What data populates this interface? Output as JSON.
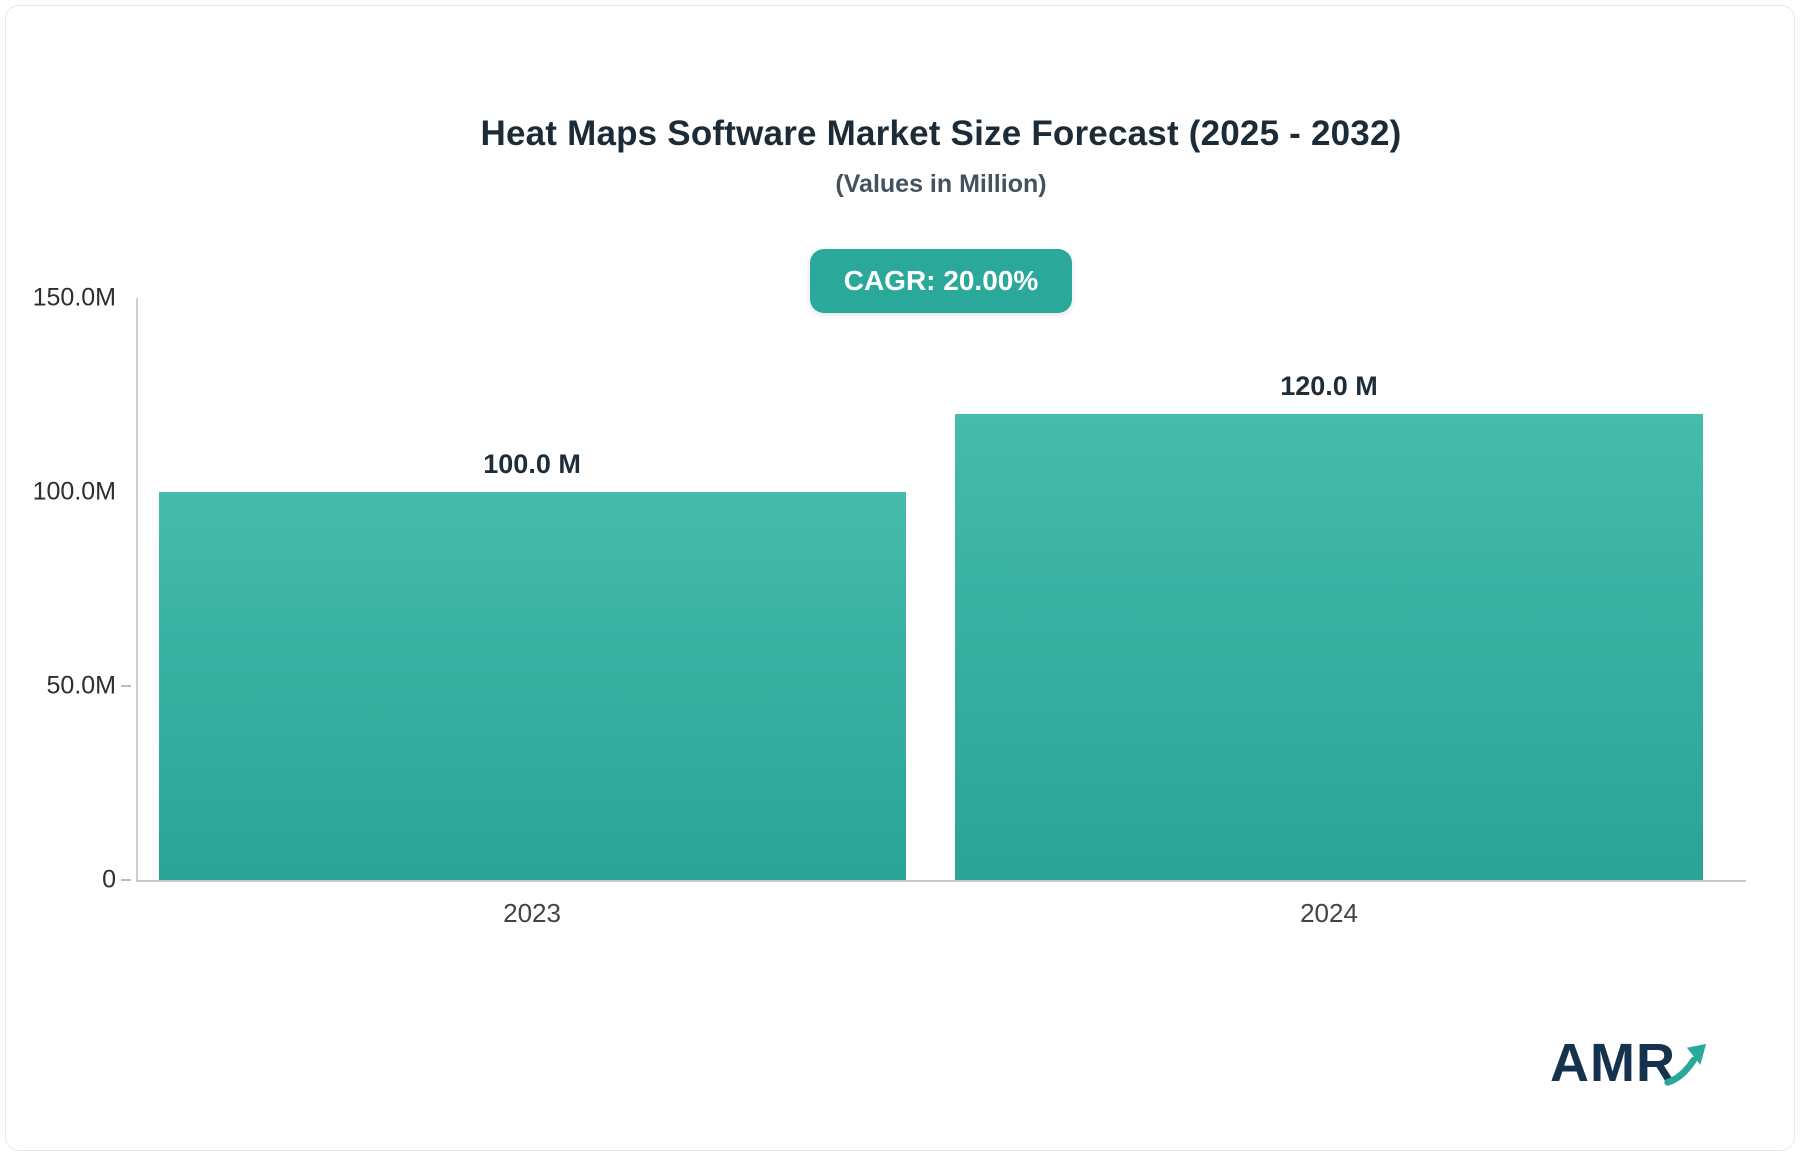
{
  "header": {
    "title": "Heat Maps Software Market Size Forecast (2025 - 2032)",
    "subtitle": "(Values in Million)",
    "cagr_badge": "CAGR: 20.00%"
  },
  "chart_data": {
    "type": "bar",
    "title": "Heat Maps Software Market Size Forecast (2025 - 2032)",
    "subtitle": "(Values in Million)",
    "cagr_percent": 20.0,
    "categories": [
      "2023",
      "2024"
    ],
    "values": [
      100.0,
      120.0
    ],
    "value_labels": [
      "100.0 M",
      "120.0 M"
    ],
    "ylim": [
      0,
      150
    ],
    "ytick_labels": [
      "150.0M",
      "100.0M",
      "50.0M",
      "0"
    ],
    "grid": false,
    "legend": "none",
    "bar_gradient_top": "#44bbab",
    "bar_gradient_bottom": "#2aa496",
    "accent_color": "#2aa99b"
  },
  "logo": {
    "text": "AMR"
  }
}
